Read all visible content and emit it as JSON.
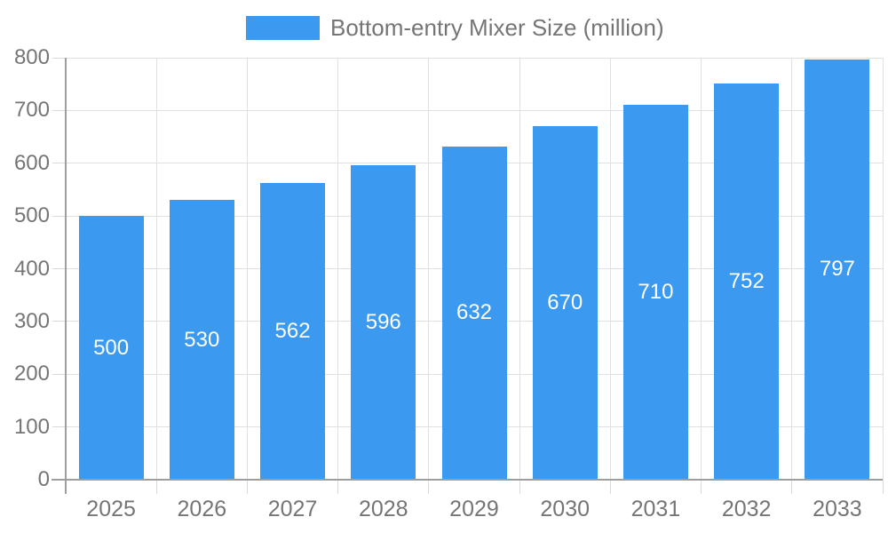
{
  "legend": {
    "label": "Bottom-entry Mixer Size (million)"
  },
  "chart_data": {
    "type": "bar",
    "title": "",
    "categories": [
      "2025",
      "2026",
      "2027",
      "2028",
      "2029",
      "2030",
      "2031",
      "2032",
      "2033"
    ],
    "series": [
      {
        "name": "Bottom-entry Mixer Size (million)",
        "values": [
          500,
          530,
          562,
          596,
          632,
          670,
          710,
          752,
          797
        ]
      }
    ],
    "xlabel": "",
    "ylabel": "",
    "ylim": [
      0,
      800
    ],
    "ytick_interval": 100,
    "ytick_labels": [
      "0",
      "100",
      "200",
      "300",
      "400",
      "500",
      "600",
      "700",
      "800"
    ],
    "grid": true,
    "legend_position": "top-center",
    "value_labels": "inside-center"
  },
  "colors": {
    "bar": "#3B99F0",
    "bar_label_text": "#FFFFFF",
    "axis_text": "#757575",
    "legend_text": "#757575",
    "gridline": "#E0E0E0",
    "tick": "#D9D9D9",
    "axis_line": "#9E9E9E",
    "background": "#FFFFFF"
  }
}
